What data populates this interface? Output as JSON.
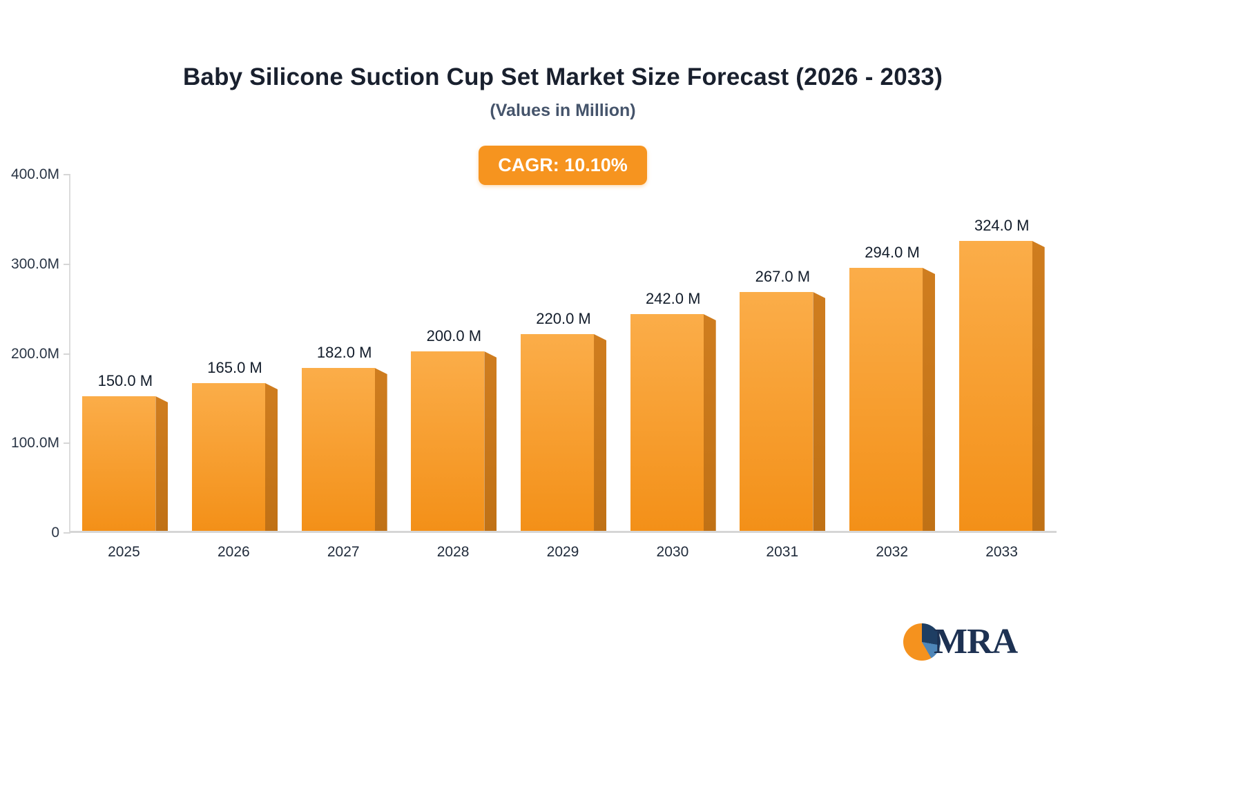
{
  "header": {
    "title": "Baby Silicone Suction Cup Set Market Size Forecast (2026 - 2033)",
    "subtitle": "(Values in Million)",
    "cagr_badge": "CAGR: 10.10%"
  },
  "colors": {
    "badge_bg": "#f6941f",
    "bar_top": "#fbad49",
    "bar_bottom": "#f39018",
    "bar_side": "#c87a1c",
    "axis_line": "#d6d6d6",
    "title_text": "#19202e"
  },
  "chart_data": {
    "type": "bar",
    "title": "Baby Silicone Suction Cup Set Market Size Forecast (2026 - 2033)",
    "subtitle": "(Values in Million)",
    "annotation": "CAGR: 10.10%",
    "categories": [
      "2025",
      "2026",
      "2027",
      "2028",
      "2029",
      "2030",
      "2031",
      "2032",
      "2033"
    ],
    "values": [
      150,
      165,
      182,
      200,
      220,
      242,
      267,
      294,
      324
    ],
    "value_labels": [
      "150.0 M",
      "165.0 M",
      "182.0 M",
      "200.0 M",
      "220.0 M",
      "242.0 M",
      "267.0 M",
      "294.0 M",
      "324.0 M"
    ],
    "xlabel": "",
    "ylabel": "",
    "ylim": [
      0,
      400
    ],
    "y_tick_values": [
      400,
      300,
      200,
      100,
      0
    ],
    "y_tick_labels": [
      "400.0M",
      "300.0M",
      "200.0M",
      "100.0M",
      "0"
    ],
    "grid": false,
    "legend": false,
    "unit": "Million"
  },
  "logo": {
    "text": "MRA"
  }
}
